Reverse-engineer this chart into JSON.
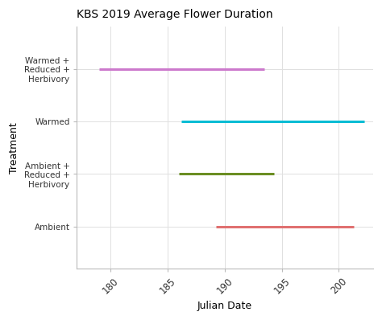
{
  "title": "KBS 2019 Average Flower Duration",
  "xlabel": "Julian Date",
  "ylabel": "Treatment",
  "lines": [
    {
      "label": "Warmed +\nReduced +\nHerbivory",
      "start": 179.0,
      "end": 193.5,
      "color": "#CC79CC",
      "y": 3
    },
    {
      "label": "Warmed",
      "start": 186.2,
      "end": 202.2,
      "color": "#00BCD4",
      "y": 2
    },
    {
      "label": "Ambient +\nReduced +\nHerbivory",
      "start": 186.0,
      "end": 194.3,
      "color": "#6B8E23",
      "y": 1
    },
    {
      "label": "Ambient",
      "start": 189.2,
      "end": 201.3,
      "color": "#E07070",
      "y": 0
    }
  ],
  "ytick_labels": [
    "Warmed +\nReduced +\nHerbivory",
    "Warmed",
    "Ambient +\nReduced +\nHerbivory",
    "Ambient"
  ],
  "ytick_positions": [
    3,
    2,
    1,
    0
  ],
  "xlim": [
    177,
    203
  ],
  "ylim": [
    -0.8,
    3.8
  ],
  "xticks": [
    180,
    185,
    190,
    195,
    200
  ],
  "background_color": "#ffffff",
  "grid_color": "#e0e0e0",
  "linewidth": 2.2
}
